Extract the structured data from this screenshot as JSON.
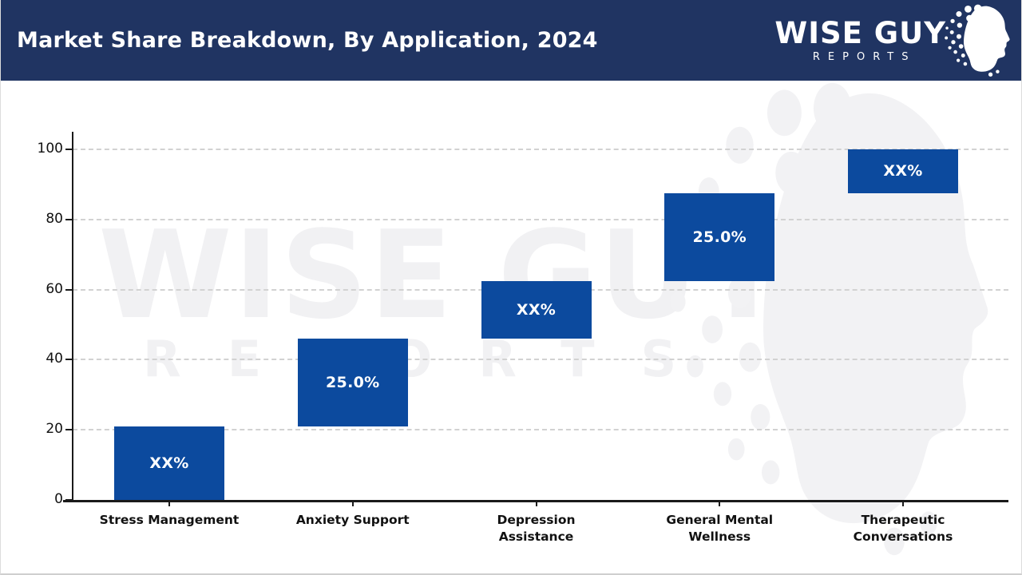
{
  "header": {
    "title": "Market Share Breakdown, By Application, 2024",
    "logo": {
      "line1": "WISE GUY",
      "line2": "REPORTS"
    },
    "bg_color": "#203462"
  },
  "watermark": {
    "line1": "WISE GUY",
    "line2": "REPORTS"
  },
  "chart_data": {
    "type": "bar",
    "subtype": "waterfall",
    "title": "Market Share Breakdown, By Application, 2024",
    "xlabel": "",
    "ylabel": "",
    "categories": [
      "Stress Management",
      "Anxiety Support",
      "Depression\nAssistance",
      "General Mental\nWellness",
      "Therapeutic\nConversations"
    ],
    "bars": [
      {
        "category": "Stress Management",
        "label": "XX%",
        "start": 0,
        "end": 21
      },
      {
        "category": "Anxiety Support",
        "label": "25.0%",
        "start": 21,
        "end": 46
      },
      {
        "category": "Depression Assistance",
        "label": "XX%",
        "start": 46,
        "end": 62.5
      },
      {
        "category": "General Mental Wellness",
        "label": "25.0%",
        "start": 62.5,
        "end": 87.5
      },
      {
        "category": "Therapeutic Conversations",
        "label": "XX%",
        "start": 87.5,
        "end": 100
      }
    ],
    "yticks": [
      0,
      20,
      40,
      60,
      80,
      100
    ],
    "ylim": [
      0,
      105
    ],
    "grid": "horizontal-dashed",
    "legend": "none",
    "bar_color": "#0c4a9e",
    "grid_color": "#d2d2d2",
    "value_label_position": "center-inside"
  }
}
